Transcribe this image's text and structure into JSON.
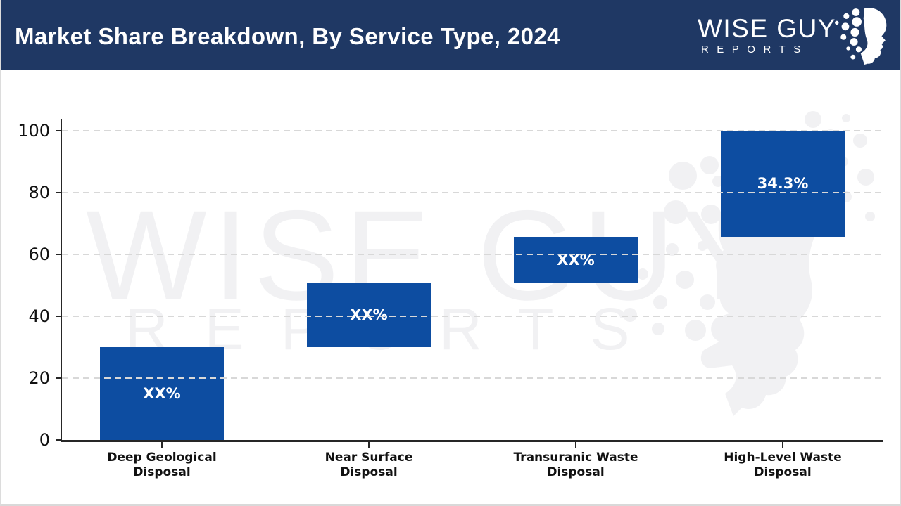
{
  "header": {
    "title": "Market Share Breakdown, By Service Type, 2024",
    "logo": {
      "line1": "WISE GUY",
      "line2": "REPORTS"
    }
  },
  "watermark": {
    "line1": "WISE GUY",
    "line2": "REPORTS"
  },
  "chart_data": {
    "type": "bar",
    "subtype": "waterfall",
    "title": "Market Share Breakdown, By Service Type, 2024",
    "categories": [
      "Deep Geological\nDisposal",
      "Near Surface\nDisposal",
      "Transuranic Waste\nDisposal",
      "High-Level Waste\nDisposal"
    ],
    "segments": [
      {
        "category": "Deep Geological Disposal",
        "start": 0,
        "end": 30,
        "label": "XX%"
      },
      {
        "category": "Near Surface Disposal",
        "start": 30,
        "end": 50.7,
        "label": "XX%"
      },
      {
        "category": "Transuranic Waste Disposal",
        "start": 50.7,
        "end": 65.7,
        "label": "XX%"
      },
      {
        "category": "High-Level Waste Disposal",
        "start": 65.7,
        "end": 100,
        "label": "34.3%"
      }
    ],
    "ylim": [
      0,
      100
    ],
    "yticks": [
      0,
      20,
      40,
      60,
      80,
      100
    ],
    "xlabel": "",
    "ylabel": "",
    "grid": "horizontal-dashed",
    "legend": "none",
    "bar_color": "#0d4da1",
    "bar_label_color": "#ffffff",
    "header_color": "#1f3864"
  }
}
